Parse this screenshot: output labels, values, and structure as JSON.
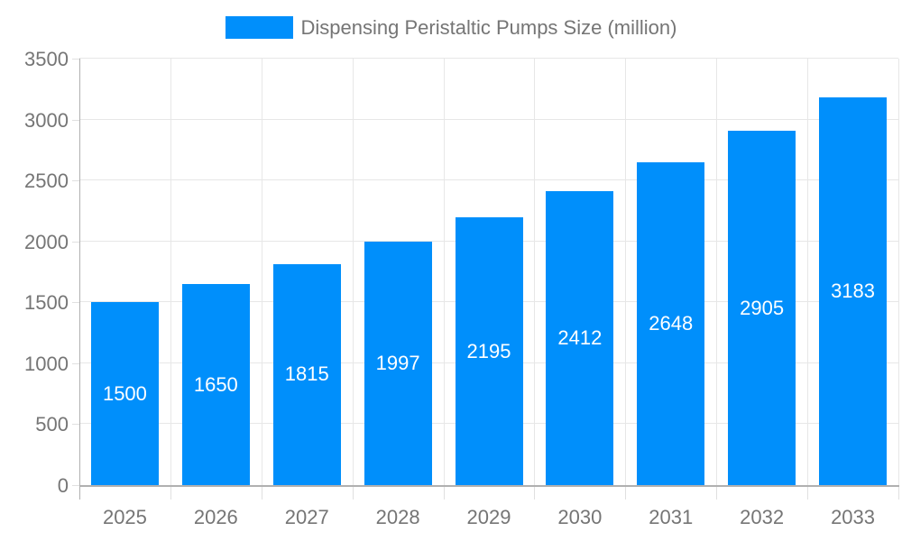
{
  "chart_data": {
    "type": "bar",
    "title": "Dispensing Peristaltic Pumps Size (million)",
    "categories": [
      "2025",
      "2026",
      "2027",
      "2028",
      "2029",
      "2030",
      "2031",
      "2032",
      "2033"
    ],
    "values": [
      1500,
      1650,
      1815,
      1997,
      2195,
      2412,
      2648,
      2905,
      3183
    ],
    "xlabel": "",
    "ylabel": "",
    "ylim": [
      0,
      3500
    ],
    "ytick_step": 500,
    "ytick_labels": [
      "0",
      "500",
      "1000",
      "1500",
      "2000",
      "2500",
      "3000",
      "3500"
    ],
    "legend_position": "top",
    "grid": true,
    "value_labels_shown": true,
    "colors": {
      "bar": "#008ffb",
      "value_label": "#ffffff",
      "axis_text": "#757575",
      "legend_text": "#757575",
      "gridline": "#e7e7e7",
      "axis_line": "#b0b0b0",
      "tick": "#e0e0e0"
    }
  }
}
